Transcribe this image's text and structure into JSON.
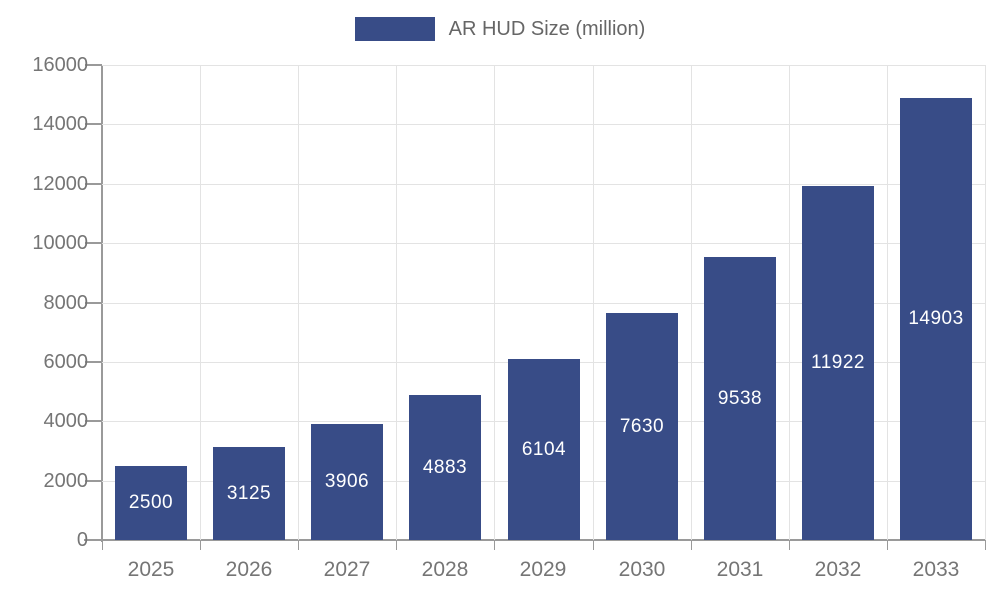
{
  "legend": {
    "label": "AR HUD Size (million)"
  },
  "colors": {
    "bar": "#384C87",
    "axis_line": "#9a9a9a",
    "grid_line": "#e3e3e3",
    "axis_tick_label": "#757575",
    "legend_text": "#666666",
    "value_label": "#ffffff"
  },
  "chart_data": {
    "type": "bar",
    "title": "AR HUD Size (million)",
    "categories": [
      "2025",
      "2026",
      "2027",
      "2028",
      "2029",
      "2030",
      "2031",
      "2032",
      "2033"
    ],
    "values": [
      2500,
      3125,
      3906,
      4883,
      6104,
      7630,
      9538,
      11922,
      14903
    ],
    "series": [
      {
        "name": "AR HUD Size (million)",
        "values": [
          2500,
          3125,
          3906,
          4883,
          6104,
          7630,
          9538,
          11922,
          14903
        ]
      }
    ],
    "xlabel": "",
    "ylabel": "",
    "ylim": [
      0,
      16000
    ],
    "ytick_step": 2000,
    "ytick_labels": [
      "0",
      "2000",
      "4000",
      "6000",
      "8000",
      "10000",
      "12000",
      "14000",
      "16000"
    ],
    "grid": true,
    "legend_position": "top",
    "value_labels_shown": true,
    "value_label_position": "center-inside-bar"
  }
}
